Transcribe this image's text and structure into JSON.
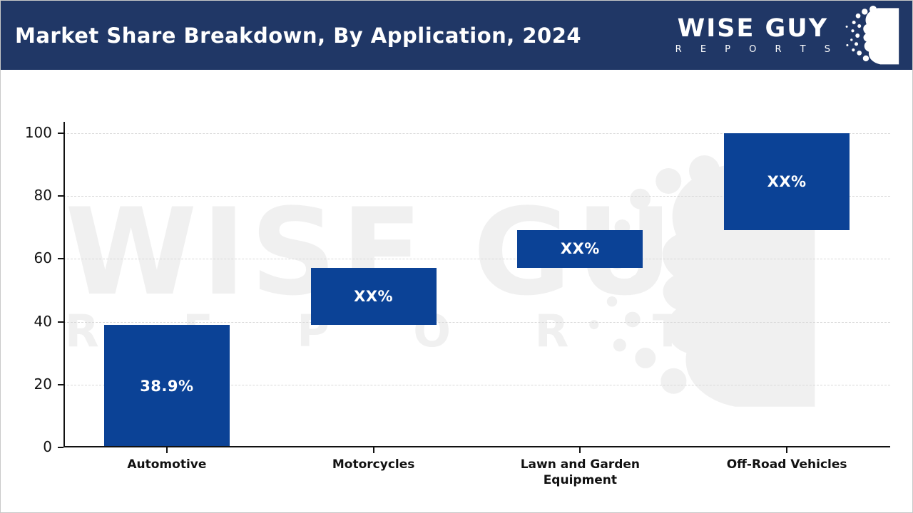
{
  "header": {
    "title": "Market Share Breakdown, By Application, 2024",
    "bg_color": "#203766",
    "logo": {
      "line1": "WISE GUY",
      "line2": "R E P O R T S"
    }
  },
  "watermark": {
    "line1": "WISE GUY",
    "line2": "R E P O R T S"
  },
  "chart_data": {
    "type": "bar",
    "subtype": "waterfall",
    "title": "Market Share Breakdown, By Application, 2024",
    "categories": [
      "Automotive",
      "Motorcycles",
      "Lawn and Garden Equipment",
      "Off-Road Vehicles"
    ],
    "bars": [
      {
        "category": "Automotive",
        "start": 0,
        "end": 38.9,
        "label": "38.9%"
      },
      {
        "category": "Motorcycles",
        "start": 38.9,
        "end": 57.2,
        "label": "XX%"
      },
      {
        "category": "Lawn and Garden Equipment",
        "start": 57.2,
        "end": 69.2,
        "label": "XX%"
      },
      {
        "category": "Off-Road Vehicles",
        "start": 69.2,
        "end": 100,
        "label": "XX%"
      }
    ],
    "yticks": [
      0,
      20,
      40,
      60,
      80,
      100
    ],
    "ylim": [
      0,
      100
    ],
    "xlabel": "",
    "ylabel": "",
    "grid": true,
    "legend": false,
    "bar_color": "#0b4296",
    "value_label_color": "#ffffff"
  }
}
